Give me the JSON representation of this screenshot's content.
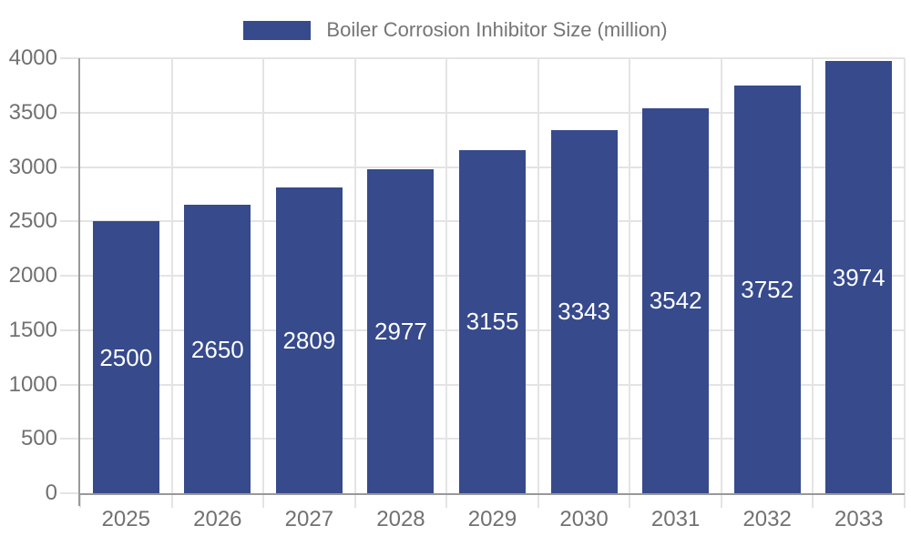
{
  "chart_data": {
    "type": "bar",
    "categories": [
      "2025",
      "2026",
      "2027",
      "2028",
      "2029",
      "2030",
      "2031",
      "2032",
      "2033"
    ],
    "series": [
      {
        "name": "Boiler Corrosion Inhibitor Size (million)",
        "values": [
          2500,
          2650,
          2809,
          2977,
          3155,
          3343,
          3542,
          3752,
          3974
        ]
      }
    ],
    "xlabel": "",
    "ylabel": "",
    "ylim": [
      0,
      4000
    ],
    "yticks": [
      0,
      500,
      1000,
      1500,
      2000,
      2500,
      3000,
      3500,
      4000
    ],
    "grid": true,
    "legend_position": "top-center",
    "value_label_position": "inside-center",
    "colors": {
      "bar": "#364A8C",
      "grid_line": "#E4E4E4",
      "axis_line": "#999999",
      "axis_label": "#717171",
      "legend_text": "#757575",
      "value_label": "#FFFFFF",
      "background": "#FFFFFF"
    }
  }
}
